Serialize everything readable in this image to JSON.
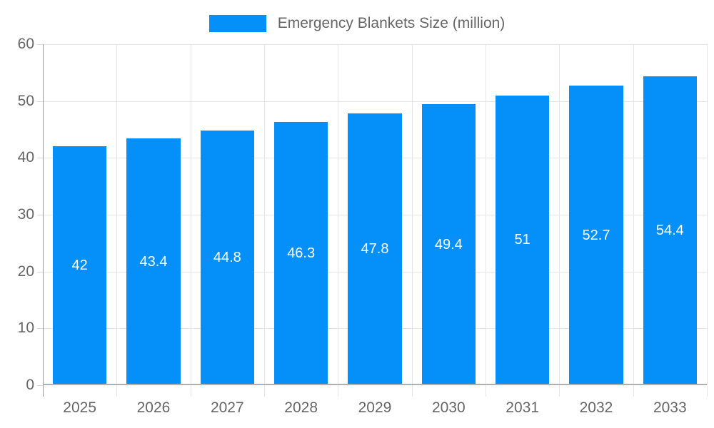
{
  "legend": {
    "label": "Emergency Blankets Size (million)",
    "position": "top-center"
  },
  "colors": {
    "bar": "#0490f8",
    "grid": "#e6e6e6",
    "axis_line": "#999999",
    "baseline": "#b0b0b0",
    "tick": "#d9d9d9",
    "axis_text": "#666666",
    "value_text": "#ffffff",
    "background": "#ffffff"
  },
  "chart_data": {
    "type": "bar",
    "title": "Emergency Blankets Size (million)",
    "categories": [
      "2025",
      "2026",
      "2027",
      "2028",
      "2029",
      "2030",
      "2031",
      "2032",
      "2033"
    ],
    "values": [
      42,
      43.4,
      44.8,
      46.3,
      47.8,
      49.4,
      51,
      52.7,
      54.4
    ],
    "value_labels": [
      "42",
      "43.4",
      "44.8",
      "46.3",
      "47.8",
      "49.4",
      "51",
      "52.7",
      "54.4"
    ],
    "series_name": "Emergency Blankets Size (million)",
    "xlabel": "",
    "ylabel": "",
    "ylim": [
      0,
      60
    ],
    "yticks": [
      0,
      10,
      20,
      30,
      40,
      50,
      60
    ],
    "grid": true,
    "value_labels_position": "center-of-bar",
    "legend_position": "top-center"
  }
}
